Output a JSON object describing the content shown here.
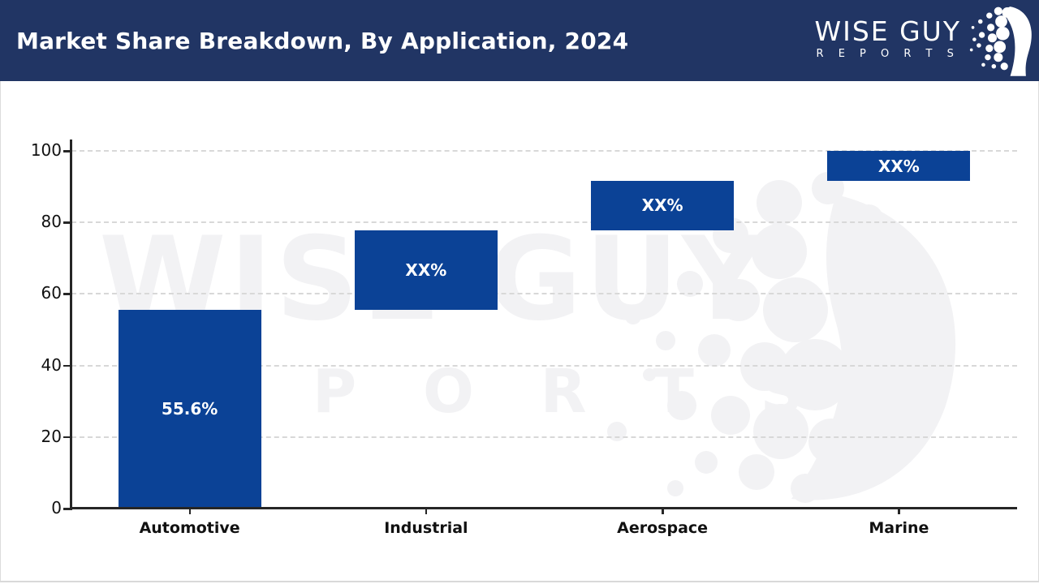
{
  "header": {
    "title": "Market Share Breakdown, By Application, 2024",
    "bg_color": "#213564",
    "logo": {
      "line1": "WISE GUY",
      "line2": "R E P O R T S"
    }
  },
  "watermark": {
    "line1": "WISE GUY",
    "line2": "P O R T S"
  },
  "chart_data": {
    "type": "bar",
    "variant": "waterfall",
    "title": "Market Share Breakdown, By Application, 2024",
    "categories": [
      "Automotive",
      "Industrial",
      "Aerospace",
      "Marine"
    ],
    "segments": [
      {
        "category": "Automotive",
        "start": 0,
        "end": 55.6,
        "label": "55.6%"
      },
      {
        "category": "Industrial",
        "start": 55.6,
        "end": 77.8,
        "label": "XX%"
      },
      {
        "category": "Aerospace",
        "start": 77.8,
        "end": 91.6,
        "label": "XX%"
      },
      {
        "category": "Marine",
        "start": 91.6,
        "end": 100,
        "label": "XX%"
      }
    ],
    "ylim": [
      0,
      100
    ],
    "yticks": [
      0,
      20,
      40,
      60,
      80,
      100
    ],
    "xlabel": "",
    "ylabel": "",
    "legend": "none",
    "grid": "horizontal-dashed",
    "bar_color": "#0b4296",
    "bar_label_color": "#ffffff",
    "axis_color": "#262626",
    "gridline_color": "#d8d8d8"
  }
}
